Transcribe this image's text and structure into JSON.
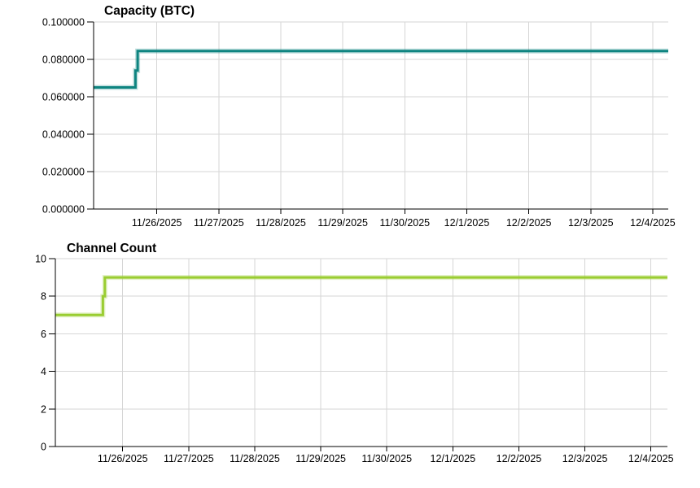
{
  "page": {
    "background_color": "#ffffff",
    "description": "Two stacked step-line charts sharing the same date axis"
  },
  "chart_data": [
    {
      "type": "line",
      "title": "Capacity (BTC)",
      "xlabel": "",
      "ylabel": "",
      "x_tick_labels": [
        "11/26/2025",
        "11/27/2025",
        "11/28/2025",
        "11/29/2025",
        "11/30/2025",
        "12/1/2025",
        "12/2/2025",
        "12/3/2025",
        "12/4/2025"
      ],
      "x_tick_positions_days": [
        0,
        1,
        2,
        3,
        4,
        5,
        6,
        7,
        8
      ],
      "x_unit": "days relative to 11/26/2025",
      "x_domain_days": [
        -1.02,
        8.25
      ],
      "ylim": [
        0,
        0.1
      ],
      "y_tick_values": [
        0,
        0.02,
        0.04,
        0.06,
        0.08,
        0.1
      ],
      "y_tick_labels": [
        "0.000000",
        "0.020000",
        "0.040000",
        "0.060000",
        "0.080000",
        "0.100000"
      ],
      "grid": true,
      "legend": "none",
      "series": [
        {
          "name": "Capacity (BTC)",
          "color": "#0e8480",
          "description": "Flat at 0.065 BTC from ~11/25, brief step to 0.074 then jump to 0.0845 BTC late 11/25, flat at 0.0845 through 12/4",
          "step_points": [
            [
              -1.02,
              0.065
            ],
            [
              -0.345,
              0.065
            ],
            [
              -0.345,
              0.074
            ],
            [
              -0.31,
              0.074
            ],
            [
              -0.31,
              0.0845
            ],
            [
              8.25,
              0.0845
            ]
          ]
        }
      ]
    },
    {
      "type": "line",
      "title": "Channel Count",
      "xlabel": "",
      "ylabel": "",
      "x_tick_labels": [
        "11/26/2025",
        "11/27/2025",
        "11/28/2025",
        "11/29/2025",
        "11/30/2025",
        "12/1/2025",
        "12/2/2025",
        "12/3/2025",
        "12/4/2025"
      ],
      "x_tick_positions_days": [
        0,
        1,
        2,
        3,
        4,
        5,
        6,
        7,
        8
      ],
      "x_unit": "days relative to 11/26/2025",
      "x_domain_days": [
        -1.02,
        8.25
      ],
      "ylim": [
        0,
        10
      ],
      "y_tick_values": [
        0,
        2,
        4,
        6,
        8,
        10
      ],
      "y_tick_labels": [
        "0",
        "2",
        "4",
        "6",
        "8",
        "10"
      ],
      "grid": true,
      "legend": "none",
      "series": [
        {
          "name": "Channel Count",
          "color": "#9acd32",
          "description": "Flat at 7 channels from ~11/25, brief step to 8 then jump to 9 late 11/25, flat at 9 through 12/4",
          "step_points": [
            [
              -1.02,
              7
            ],
            [
              -0.3,
              7
            ],
            [
              -0.3,
              8
            ],
            [
              -0.27,
              8
            ],
            [
              -0.27,
              9
            ],
            [
              8.25,
              9
            ]
          ]
        }
      ]
    }
  ],
  "style": {
    "grid_color": "#d6d6d6",
    "axis_color": "#000000",
    "text_color": "#000000"
  }
}
